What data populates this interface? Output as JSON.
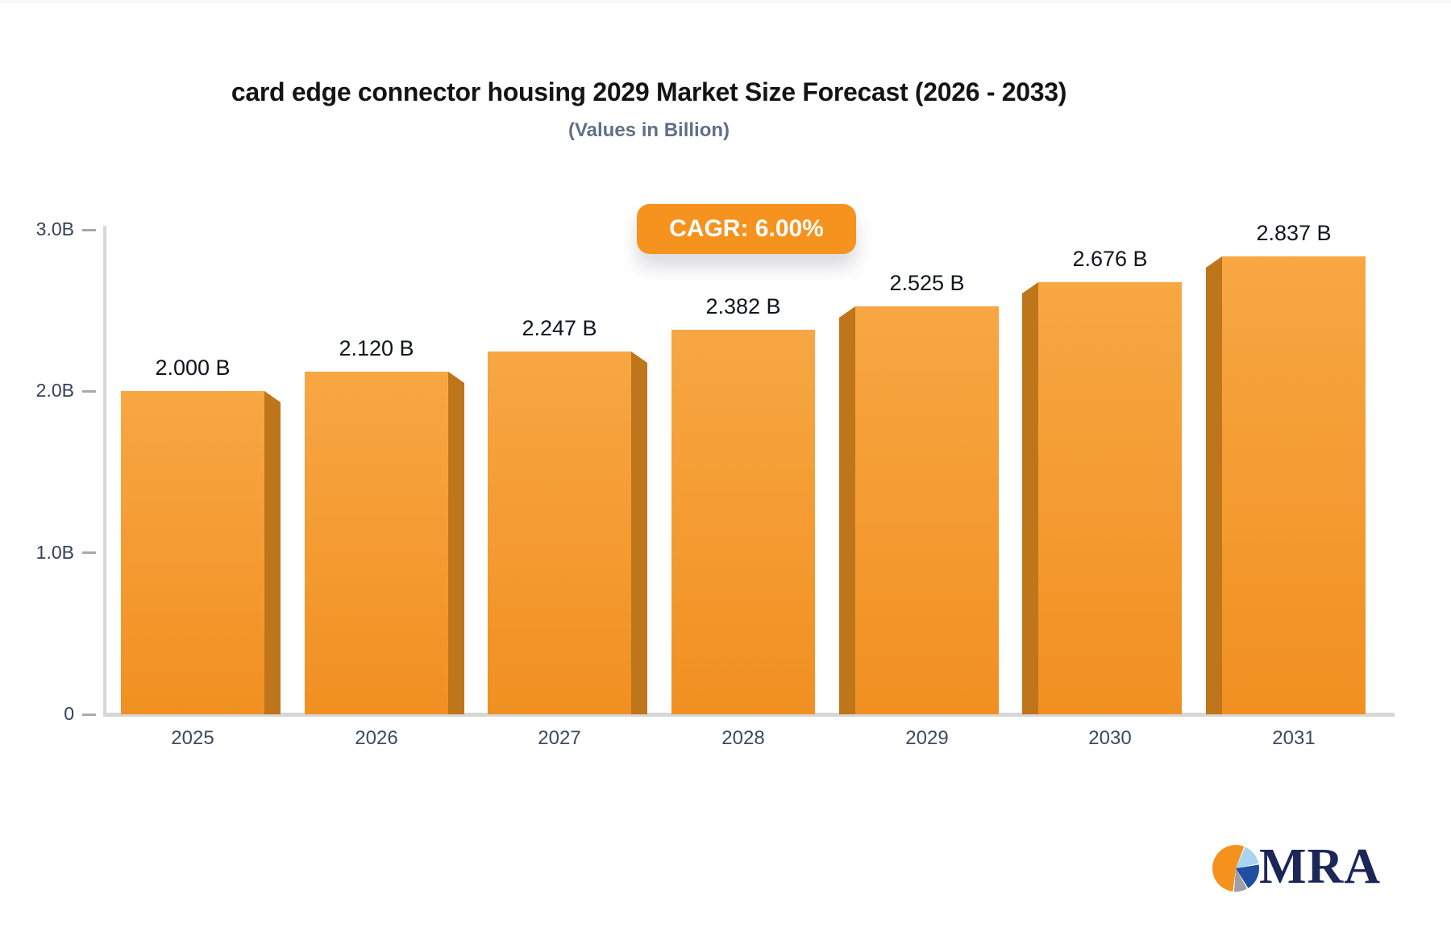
{
  "header": {
    "title": "card edge connector housing 2029 Market Size Forecast (2026 - 2033)",
    "subtitle": "(Values in Billion)",
    "cagr_badge": "CAGR: 6.00%"
  },
  "chart_data": {
    "type": "bar",
    "title": "card edge connector housing 2029 Market Size Forecast (2026 - 2033)",
    "subtitle": "(Values in Billion)",
    "categories": [
      "2025",
      "2026",
      "2027",
      "2028",
      "2029",
      "2030",
      "2031"
    ],
    "values": [
      2.0,
      2.12,
      2.247,
      2.382,
      2.525,
      2.676,
      2.837
    ],
    "bar_labels": [
      "2.000 B",
      "2.120 B",
      "2.247 B",
      "2.382 B",
      "2.525 B",
      "2.676 B",
      "2.837 B"
    ],
    "annotation": "CAGR: 6.00%",
    "xlabel": "",
    "ylabel": "",
    "ylim": [
      0,
      3
    ],
    "ytick_labels": [
      "3.0B",
      "2.0B",
      "1.0B",
      "0"
    ],
    "ytick_values": [
      3,
      2,
      1,
      0
    ],
    "grid": false,
    "legend": false
  },
  "colors": {
    "bar_front_top": "#f7a743",
    "bar_front_bottom": "#f19021",
    "bar_side": "#bf7519",
    "badge_bg": "#f6921e",
    "badge_text": "#ffffff",
    "axis_line": "#d7d7d7",
    "tick_text": "#33405a",
    "value_text": "#10141c",
    "logo_navy": "#1c2757",
    "logo_orange": "#f5921e",
    "logo_lightblue": "#a9d3ef",
    "logo_gray": "#a09da5"
  },
  "logo": {
    "text": "MRA",
    "pie_icon": "pie-chart-icon"
  }
}
